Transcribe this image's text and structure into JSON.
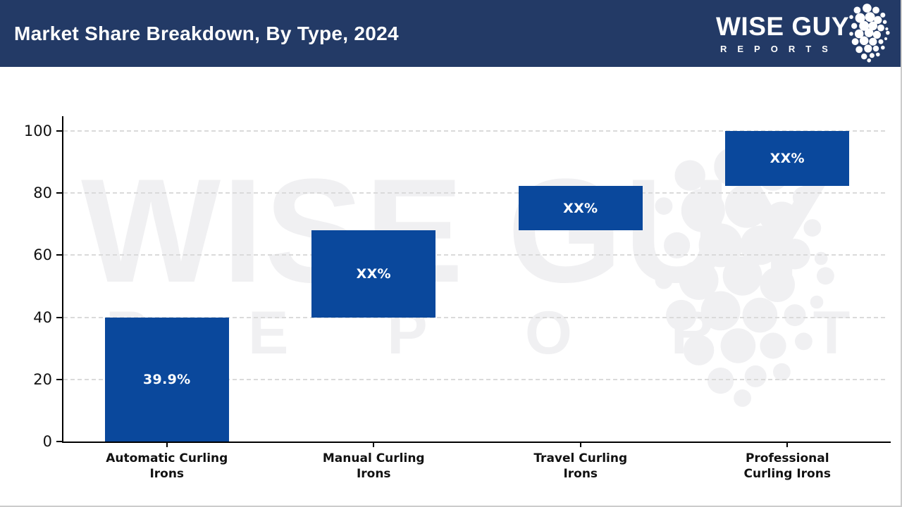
{
  "header": {
    "logo": {
      "line1": "WISE GUY",
      "line2": "REPORTS"
    }
  },
  "watermark": {
    "line1": "WISE GUY",
    "line2": "R E P O R T S"
  },
  "chart_data": {
    "type": "bar",
    "variant": "waterfall",
    "title": "Market Share Breakdown, By Type, 2024",
    "categories": [
      "Automatic Curling Irons",
      "Manual Curling Irons",
      "Travel Curling Irons",
      "Professional Curling Irons"
    ],
    "category_lines": [
      [
        "Automatic Curling",
        "Irons"
      ],
      [
        "Manual Curling",
        "Irons"
      ],
      [
        "Travel Curling",
        "Irons"
      ],
      [
        "Professional",
        "Curling Irons"
      ]
    ],
    "segments": [
      {
        "category": "Automatic Curling Irons",
        "start": 0,
        "end": 39.9,
        "label": "39.9%"
      },
      {
        "category": "Manual Curling Irons",
        "start": 39.9,
        "end": 68.0,
        "label": "XX%"
      },
      {
        "category": "Travel Curling Irons",
        "start": 68.0,
        "end": 82.3,
        "label": "XX%"
      },
      {
        "category": "Professional Curling Irons",
        "start": 82.3,
        "end": 100,
        "label": "XX%"
      }
    ],
    "ylabel": "",
    "xlabel": "",
    "ylim": [
      0,
      100
    ],
    "yticks": [
      0,
      20,
      40,
      60,
      80,
      100
    ],
    "grid": "horizontal-dashed",
    "legend": "none",
    "bar_color": "#0a489c",
    "bar_label_color": "#ffffff",
    "axis_color": "#000000",
    "gridline_color": "#dadada",
    "header_bg": "#233a66",
    "watermark_color": "#f0f0f2"
  }
}
